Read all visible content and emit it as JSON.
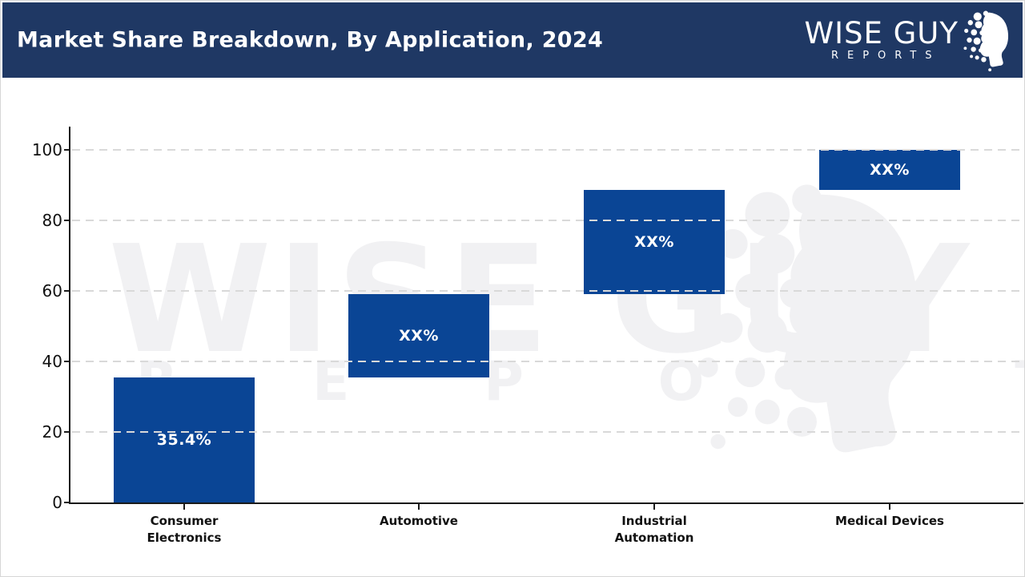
{
  "header": {
    "title": "Market Share Breakdown, By Application, 2024",
    "logo": {
      "name": "WISE GUY",
      "sub": "REPORTS"
    }
  },
  "watermark": {
    "line1": "WISE GUY",
    "line2": "REPORTS"
  },
  "colors": {
    "header_bg": "#1f3864",
    "bar": "#0a4595",
    "grid": "#d9d9d9",
    "axis": "#1a1a1a",
    "bar_label": "#ffffff",
    "watermark": "#f1f1f3"
  },
  "chart_data": {
    "type": "bar",
    "subtype": "waterfall-breakdown",
    "title": "Market Share Breakdown, By Application, 2024",
    "categories": [
      "Consumer Electronics",
      "Automotive",
      "Industrial Automation",
      "Medical Devices"
    ],
    "category_lines": [
      [
        "Consumer",
        "Electronics"
      ],
      [
        "Automotive"
      ],
      [
        "Industrial",
        "Automation"
      ],
      [
        "Medical Devices"
      ]
    ],
    "segments": [
      {
        "category": "Consumer Electronics",
        "start": 0,
        "end": 35.4,
        "label": "35.4%"
      },
      {
        "category": "Automotive",
        "start": 35.4,
        "end": 59.1,
        "label": "XX%"
      },
      {
        "category": "Industrial Automation",
        "start": 59.1,
        "end": 88.6,
        "label": "XX%"
      },
      {
        "category": "Medical Devices",
        "start": 88.6,
        "end": 100,
        "label": "XX%"
      }
    ],
    "xlabel": "",
    "ylabel": "",
    "ylim": [
      0,
      100
    ],
    "yticks": [
      0,
      20,
      40,
      60,
      80,
      100
    ],
    "grid": "dashed-horizontal",
    "legend": "none"
  }
}
